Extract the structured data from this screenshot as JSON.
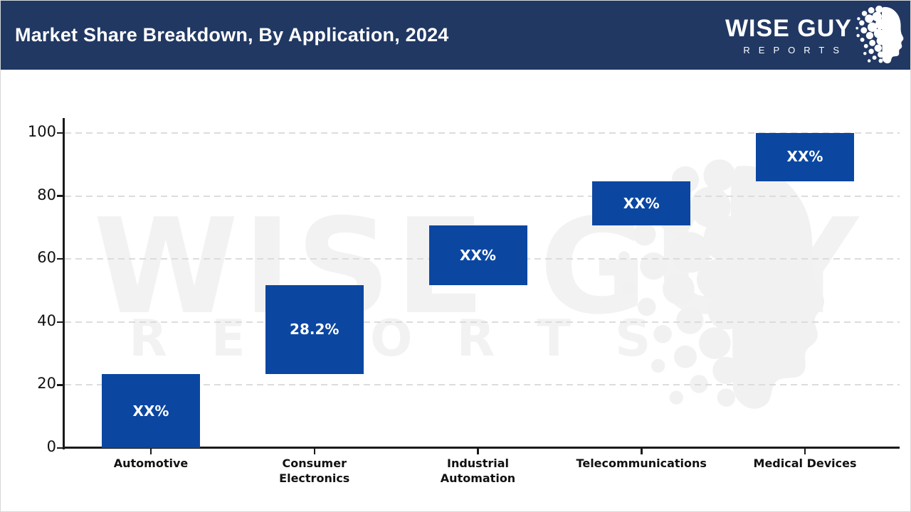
{
  "header": {
    "title": "Market Share Breakdown, By Application, 2024",
    "bg_color": "#213863"
  },
  "logo": {
    "name": "WISE GUY",
    "sub": "REPORTS",
    "face_icon": "dotted-head-profile-icon"
  },
  "watermark": {
    "name": "WISE GUY",
    "sub": "REPORTS"
  },
  "chart_data": {
    "type": "bar",
    "subtype": "floating-waterfall-segments",
    "title": "Market Share Breakdown, By Application, 2024",
    "xlabel": "",
    "ylabel": "",
    "categories": [
      "Automotive",
      "Consumer Electronics",
      "Industrial Automation",
      "Telecommunications",
      "Medical Devices"
    ],
    "segments": [
      {
        "category": "Automotive",
        "label": "XX%",
        "start": 0,
        "end": 23.5
      },
      {
        "category": "Consumer Electronics",
        "label": "28.2%",
        "start": 23.5,
        "end": 51.7
      },
      {
        "category": "Industrial Automation",
        "label": "XX%",
        "start": 51.7,
        "end": 70.7
      },
      {
        "category": "Telecommunications",
        "label": "XX%",
        "start": 70.7,
        "end": 84.7
      },
      {
        "category": "Medical Devices",
        "label": "XX%",
        "start": 84.7,
        "end": 100
      }
    ],
    "yticks": [
      0,
      20,
      40,
      60,
      80,
      100
    ],
    "ylim": [
      0,
      104.5
    ],
    "grid": "horizontal-dashed",
    "legend": "none",
    "bar_color": "#0b47a1",
    "bar_label_color": "#ffffff",
    "gridline_color": "#dcdcdc",
    "axis_color": "#1a1a1a"
  }
}
